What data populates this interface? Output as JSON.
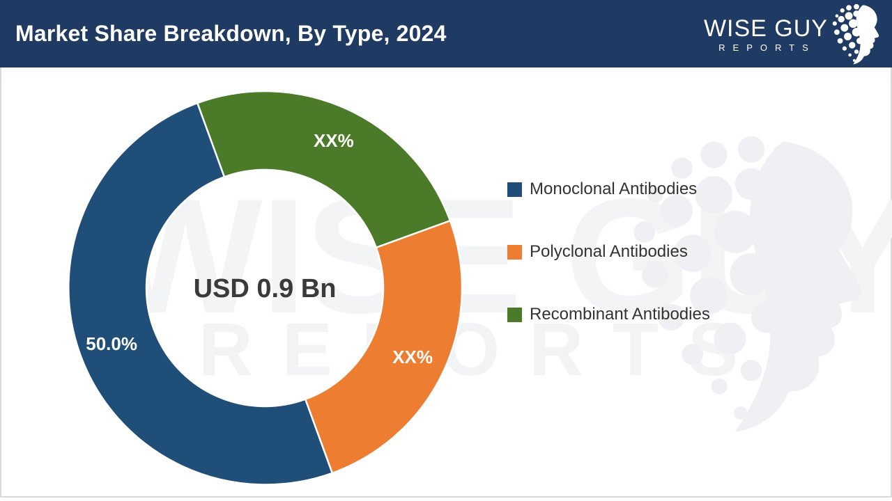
{
  "header": {
    "title": "Market Share Breakdown, By Type, 2024",
    "bg_color": "#1f3a63",
    "logo": {
      "line1": "WISE GUY",
      "line2": "REPORTS"
    }
  },
  "chart_data": {
    "type": "pie",
    "subtype": "donut",
    "title": "Market Share Breakdown, By Type, 2024",
    "center_label": "USD 0.9 Bn",
    "start_angle_deg": -20,
    "direction": "clockwise",
    "legend_position": "right",
    "slices": [
      {
        "name": "Recombinant Antibodies",
        "display_label": "XX%",
        "percent": 25,
        "color": "#4b7a28"
      },
      {
        "name": "Polyclonal Antibodies",
        "display_label": "XX%",
        "percent": 25,
        "color": "#ed7d31"
      },
      {
        "name": "Monoclonal Antibodies",
        "display_label": "50.0%",
        "percent": 50,
        "color": "#1f4e79"
      }
    ]
  },
  "legend": {
    "items": [
      {
        "label": "Monoclonal Antibodies",
        "color": "#1f4e79"
      },
      {
        "label": "Polyclonal Antibodies",
        "color": "#ed7d31"
      },
      {
        "label": "Recombinant Antibodies",
        "color": "#4b7a28"
      }
    ]
  },
  "watermark": {
    "line1": "WISE GUY",
    "line2": "REPORTS"
  }
}
